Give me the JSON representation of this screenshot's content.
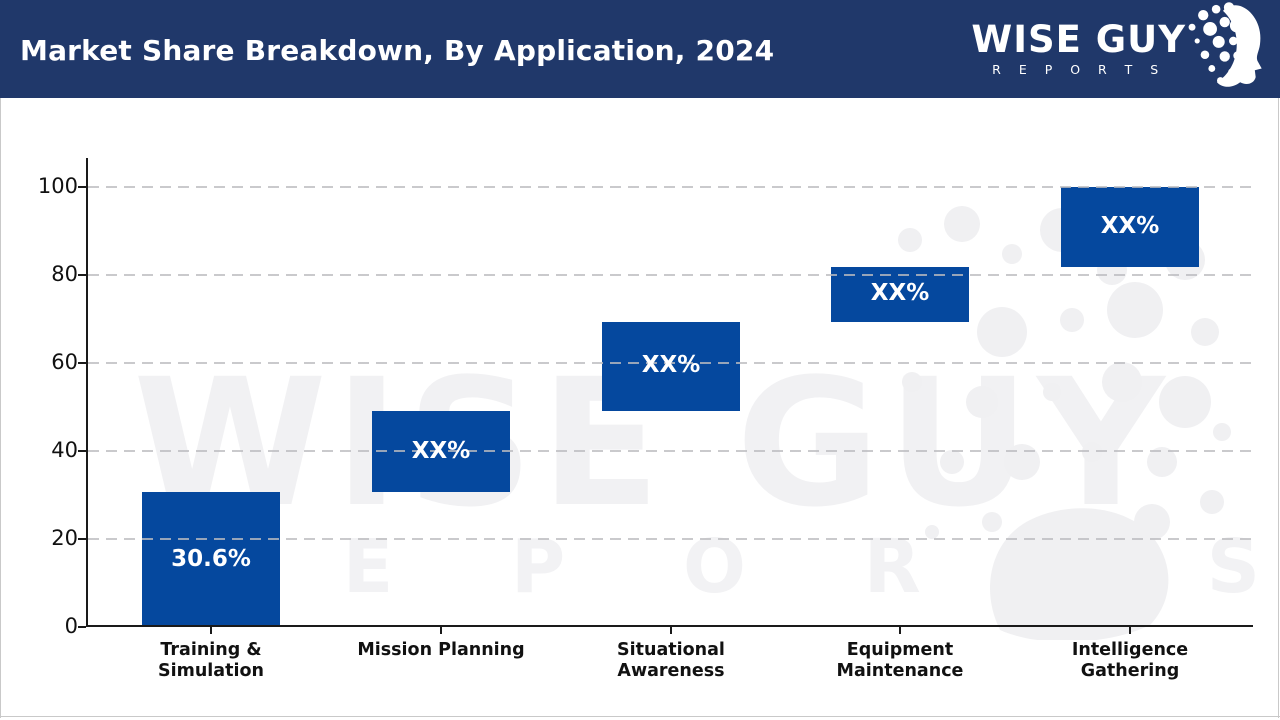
{
  "header": {
    "title": "Market Share Breakdown, By Application, 2024",
    "bg_color": "#20386a",
    "logo": {
      "name": "WISE GUY",
      "subtitle": "R E P O R T S"
    }
  },
  "watermark": {
    "line1": "WISE GUY",
    "line2": "R E P O R T S"
  },
  "chart_data": {
    "type": "bar",
    "subtype": "waterfall-floating-bars",
    "title": "Market Share Breakdown, By Application, 2024",
    "categories": [
      "Training &\nSimulation",
      "Mission Planning",
      "Situational\nAwareness",
      "Equipment\nMaintenance",
      "Intelligence\nGathering"
    ],
    "bars": [
      {
        "category": "Training & Simulation",
        "start": 0,
        "end": 30.6,
        "label": "30.6%"
      },
      {
        "category": "Mission Planning",
        "start": 30.6,
        "end": 49.1,
        "label": "XX%"
      },
      {
        "category": "Situational Awareness",
        "start": 49.1,
        "end": 69.4,
        "label": "XX%"
      },
      {
        "category": "Equipment Maintenance",
        "start": 69.4,
        "end": 81.9,
        "label": "XX%"
      },
      {
        "category": "Intelligence Gathering",
        "start": 81.9,
        "end": 100,
        "label": "XX%"
      }
    ],
    "yticks": [
      0,
      20,
      40,
      60,
      80,
      100
    ],
    "ylim": [
      0,
      107
    ],
    "xlabel": "",
    "ylabel": "",
    "grid": "horizontal-dashed",
    "legend": "none",
    "bar_color": "#05489e",
    "bar_label_color": "#ffffff",
    "axis_color": "#1a1a1a",
    "grid_color": "#d8d8d8"
  }
}
